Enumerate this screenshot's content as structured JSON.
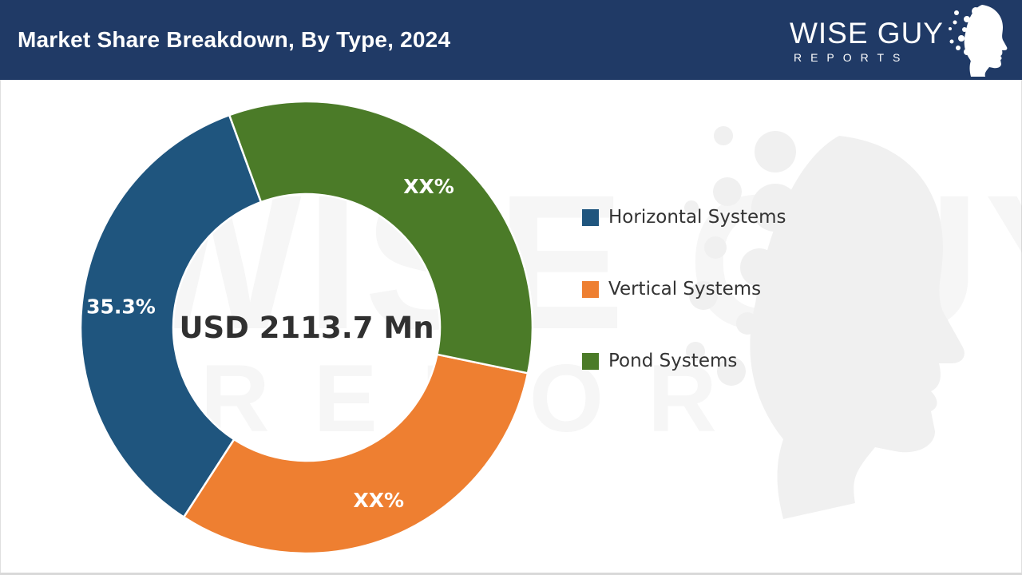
{
  "header": {
    "title": "Market Share Breakdown, By Type, 2024",
    "brand": {
      "line1": "WISE GUY",
      "line2": "REPORTS"
    }
  },
  "watermark": {
    "line1": "WISE GUY",
    "line2": "REPORTS"
  },
  "chart_data": {
    "type": "donut",
    "title": "Market Share Breakdown, By Type, 2024",
    "center_label": "USD 2113.7 Mn",
    "start_angle_deg_cw_from_top": 340,
    "direction": "counterclockwise",
    "legend_position": "right",
    "slices": [
      {
        "name": "Horizontal Systems",
        "value_pct": 35.3,
        "label": "35.3%",
        "color": "#1F557E"
      },
      {
        "name": "Vertical Systems",
        "value_pct": 30.9,
        "label": "XX%",
        "color": "#EE7F31"
      },
      {
        "name": "Pond Systems",
        "value_pct": 33.8,
        "label": "XX%",
        "color": "#4B7B28"
      }
    ]
  }
}
